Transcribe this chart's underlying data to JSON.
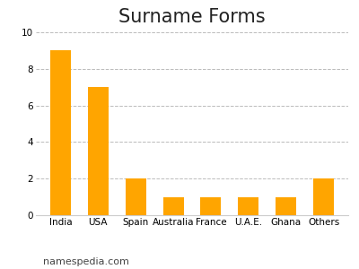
{
  "title": "Surname Forms",
  "categories": [
    "India",
    "USA",
    "Spain",
    "Australia",
    "France",
    "U.A.E.",
    "Ghana",
    "Others"
  ],
  "values": [
    9,
    7,
    2,
    1,
    1,
    1,
    1,
    2
  ],
  "bar_color": "#FFA500",
  "ylim": [
    0,
    10
  ],
  "yticks": [
    0,
    2,
    4,
    6,
    8,
    10
  ],
  "grid_color": "#bbbbbb",
  "grid_linestyle": "--",
  "background_color": "#ffffff",
  "title_fontsize": 15,
  "tick_fontsize": 7.5,
  "watermark": "namespedia.com",
  "watermark_fontsize": 8
}
